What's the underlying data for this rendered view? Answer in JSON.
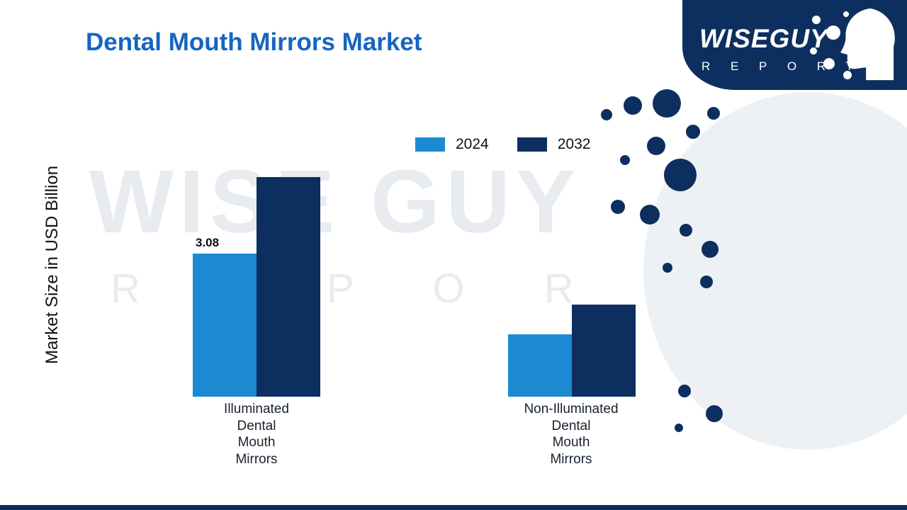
{
  "header": {
    "title": "Dental Mouth Mirrors Market"
  },
  "logo": {
    "brand": "WISEGUY",
    "subtitle": "R E P O R T S"
  },
  "watermark": {
    "brand": "WISE GUY",
    "subtitle": "R E P O R T S"
  },
  "chart_data": {
    "type": "bar",
    "title": "Dental Mouth Mirrors Market",
    "ylabel": "Market Size in USD Billion",
    "xlabel": "",
    "ylim": [
      0,
      5
    ],
    "grid": false,
    "legend_position": "top-center",
    "categories": [
      "Illuminated Dental Mouth Mirrors",
      "Non-Illuminated Dental Mouth Mirrors"
    ],
    "category_label_lines": [
      [
        "Illuminated",
        "Dental",
        "Mouth",
        "Mirrors"
      ],
      [
        "Non-Illuminated",
        "Dental",
        "Mouth",
        "Mirrors"
      ]
    ],
    "series": [
      {
        "name": "2024",
        "color": "#1b8ad3",
        "values": [
          3.08,
          1.34
        ],
        "data_labels": [
          "3.08",
          ""
        ]
      },
      {
        "name": "2032",
        "color": "#0d2f5f",
        "values": [
          4.72,
          1.98
        ],
        "data_labels": [
          "",
          ""
        ]
      }
    ]
  },
  "colors": {
    "title_blue": "#1565c0",
    "navy": "#0d2f5f",
    "light_blue": "#1b8ad3",
    "watermark_gray": "#e8ebef"
  }
}
